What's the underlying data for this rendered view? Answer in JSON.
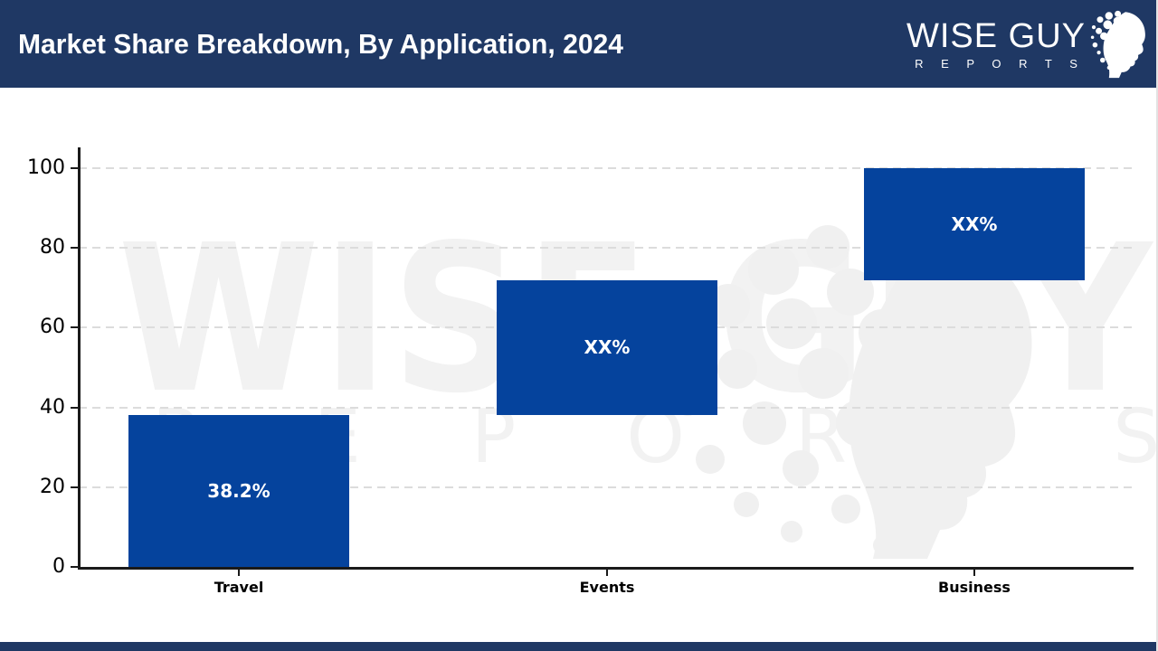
{
  "header": {
    "title": "Market Share Breakdown, By Application, 2024",
    "bg_color": "#1f3864",
    "logo": {
      "wordmark": "WISE GUY",
      "subtext": "R E P O R T S"
    }
  },
  "watermark": {
    "line1": "WISE GUY",
    "line2": "R E P O R T S"
  },
  "chart_data": {
    "type": "bar",
    "subtype": "floating-waterfall-segments",
    "title": "Market Share Breakdown, By Application, 2024",
    "categories": [
      "Travel",
      "Events",
      "Business"
    ],
    "series": [
      {
        "name": "Market share (%)",
        "ranges": [
          [
            0,
            38.2
          ],
          [
            38.2,
            71.8
          ],
          [
            71.8,
            100
          ]
        ],
        "labels": [
          "38.2%",
          "XX%",
          "XX%"
        ]
      }
    ],
    "ylim": [
      0,
      105
    ],
    "yticks": [
      0,
      20,
      40,
      60,
      80,
      100
    ],
    "grid": "horizontal-dashed",
    "legend": "none",
    "bar_color": "#05439d",
    "bar_label_color": "#ffffff",
    "axis_color": "#1a1a1a"
  },
  "footer": {
    "bg_color": "#1f3864"
  }
}
